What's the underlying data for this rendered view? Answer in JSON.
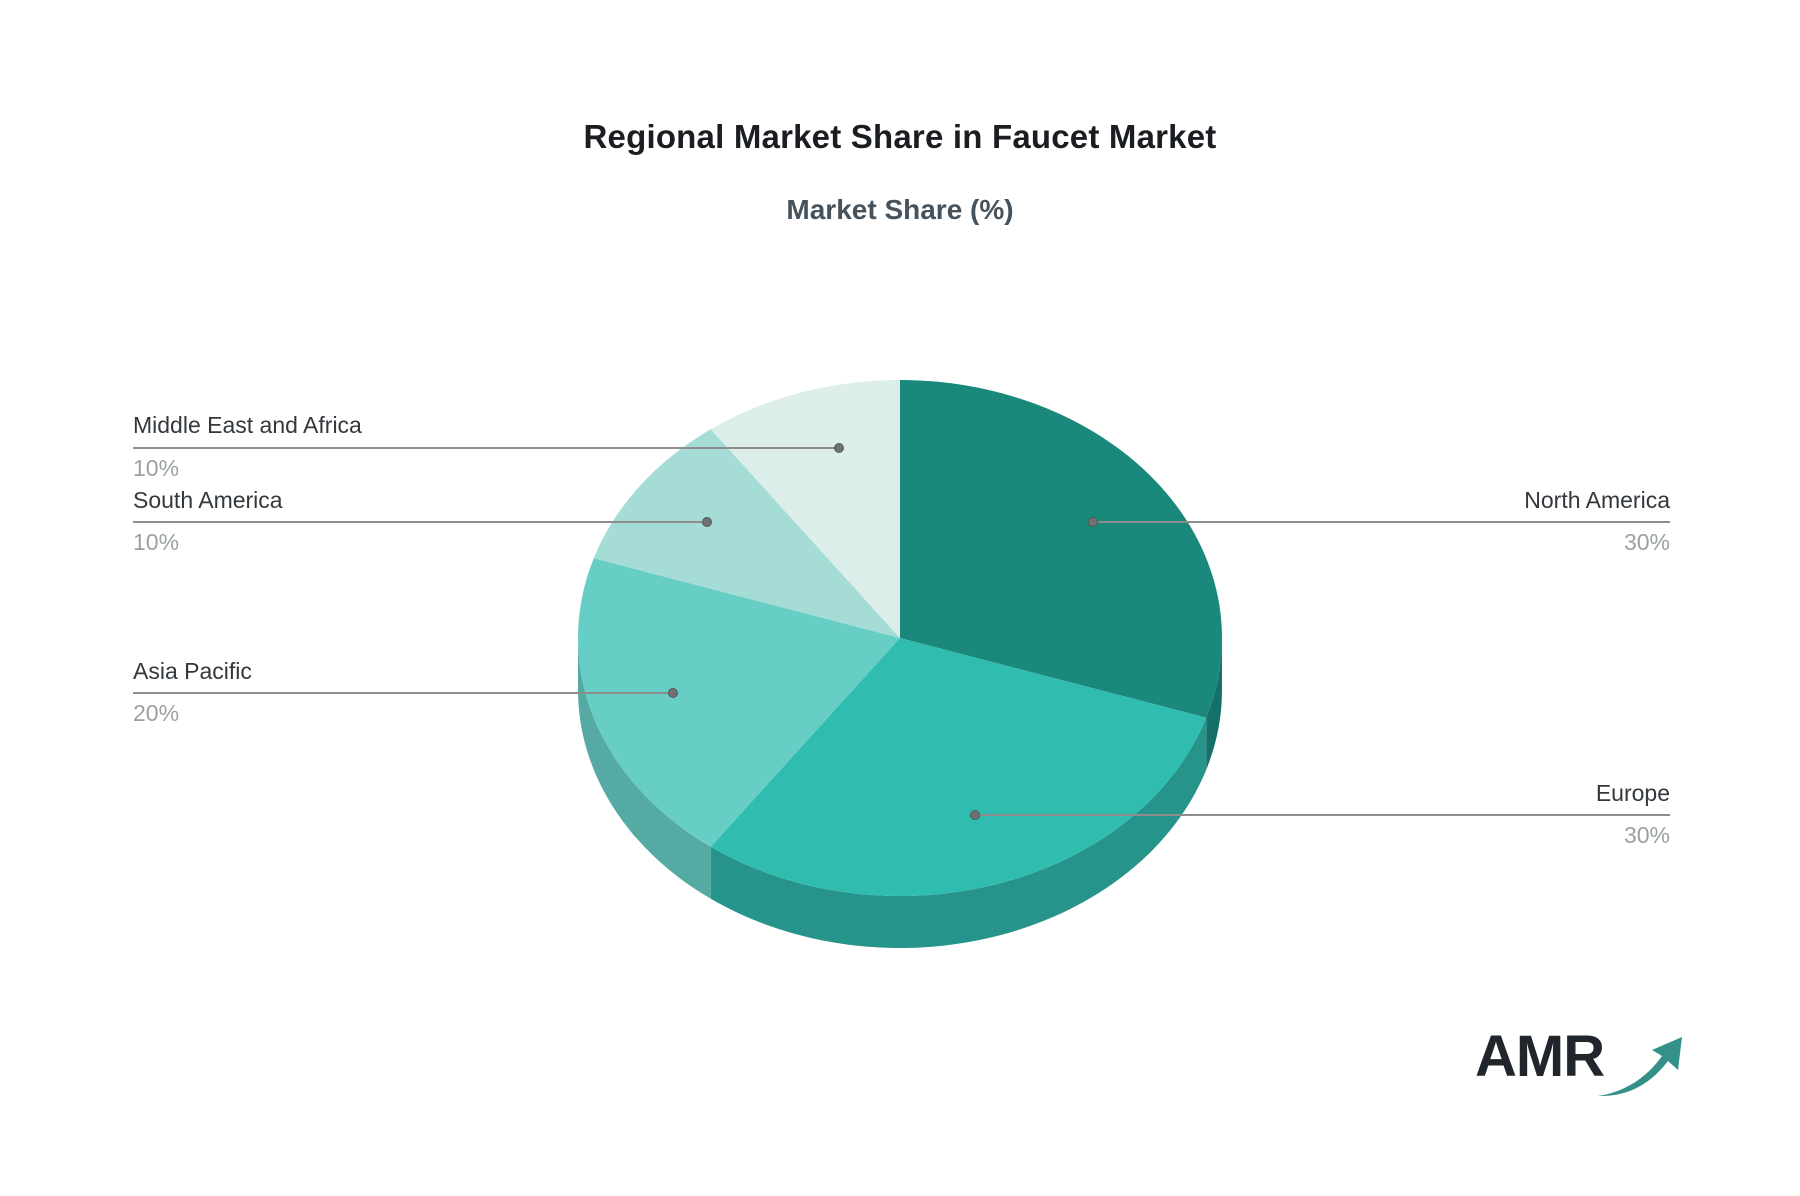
{
  "header": {
    "title": "Regional Market Share in Faucet Market",
    "subtitle": "Market Share (%)"
  },
  "logo": {
    "text": "AMR",
    "text_color": "#20262c",
    "arrow_color": "#35908a"
  },
  "chart_data": {
    "type": "pie",
    "title": "Regional Market Share in Faucet Market",
    "subtitle": "Market Share (%)",
    "unit": "%",
    "style": "3d-pie",
    "start_angle_deg": 0,
    "direction": "clockwise",
    "slices": [
      {
        "label": "North America",
        "value": 30,
        "display": "30%",
        "color": "#1a897c",
        "side_color": "#15706a",
        "callout_side": "right"
      },
      {
        "label": "Europe",
        "value": 30,
        "display": "30%",
        "color": "#30bdb0",
        "side_color": "#27948b",
        "callout_side": "right"
      },
      {
        "label": "Asia Pacific",
        "value": 20,
        "display": "20%",
        "color": "#66cec4",
        "side_color": "#55aba3",
        "callout_side": "left"
      },
      {
        "label": "South America",
        "value": 10,
        "display": "10%",
        "color": "#a6dcd6",
        "side_color": "#8fc6bf",
        "callout_side": "left"
      },
      {
        "label": "Middle East and Africa",
        "value": 10,
        "display": "10%",
        "color": "#dceeea",
        "side_color": "#c2dcd7",
        "callout_side": "left"
      }
    ],
    "styles": {
      "connector_line_color": "#8d8d8d",
      "connector_dot_color": "#6e7372",
      "connector_dot_ring_color": "#545858",
      "label_color": "#33383d",
      "value_color": "#9ba1a3",
      "background": "#ffffff"
    }
  }
}
